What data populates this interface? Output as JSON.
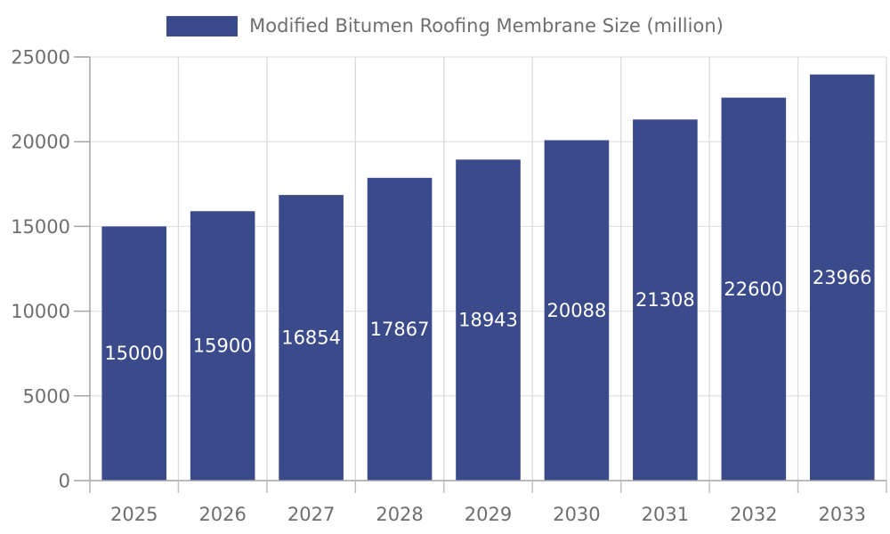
{
  "chart_data": {
    "type": "bar",
    "title": "Modified Bitumen Roofing Membrane Size (million)",
    "categories": [
      "2025",
      "2026",
      "2027",
      "2028",
      "2029",
      "2030",
      "2031",
      "2032",
      "2033"
    ],
    "values": [
      15000,
      15900,
      16854,
      17867,
      18943,
      20088,
      21308,
      22600,
      23966
    ],
    "xlabel": "",
    "ylabel": "",
    "ylim": [
      0,
      25000
    ],
    "yticks": [
      0,
      5000,
      10000,
      15000,
      20000,
      25000
    ],
    "grid": true,
    "legend_position": "top",
    "value_labels_inside_bars": true,
    "colors": {
      "bar": "#3A4A8B",
      "value_label": "#FFFFFF",
      "tick_label": "#6E6E6E",
      "legend_text": "#6E6E6E",
      "h_gridline": "#E4E4E7",
      "v_gridline": "#DBDBE0",
      "axis": "#A3A3A8",
      "x_tick": "#BFBFC4"
    }
  }
}
